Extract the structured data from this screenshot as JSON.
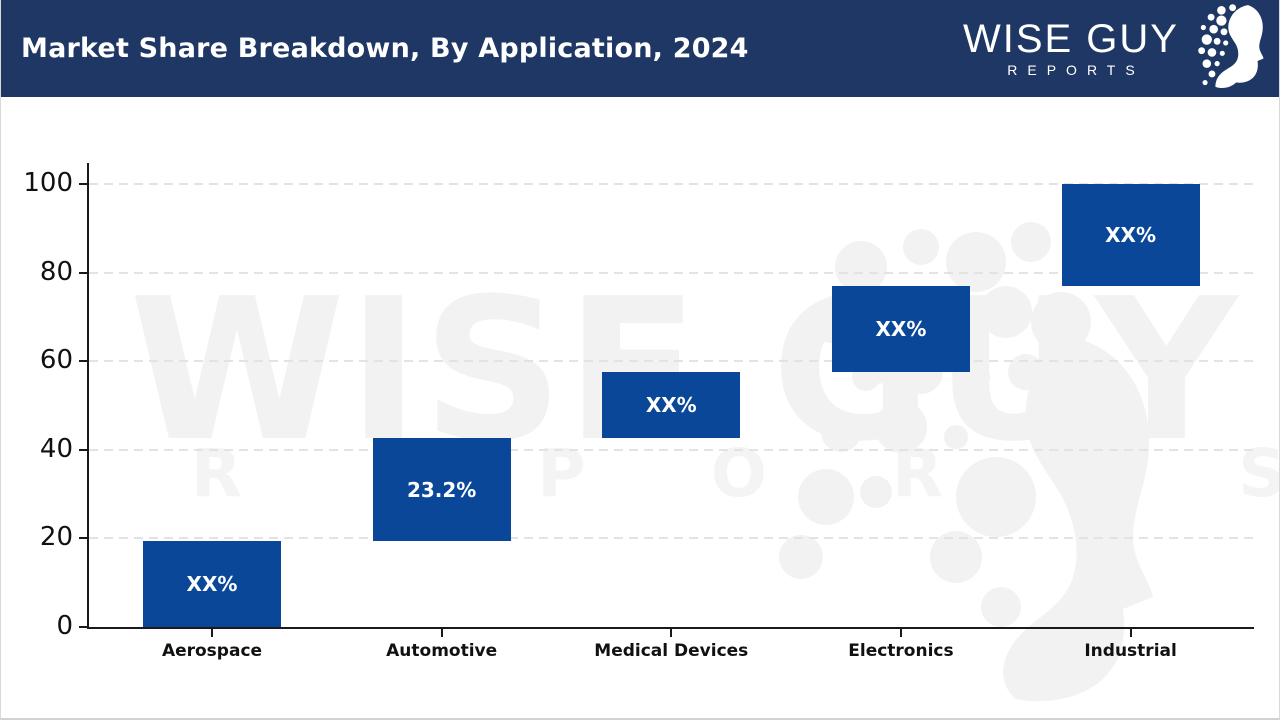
{
  "header": {
    "title": "Market Share Breakdown, By Application, 2024",
    "logo": {
      "line1": "WISE GUY",
      "line2": "REPORTS"
    }
  },
  "watermark": {
    "line1": "WISE GUY",
    "line2": "REPORTS"
  },
  "chart_data": {
    "type": "bar",
    "subtype": "waterfall",
    "title": "Market Share Breakdown, By Application, 2024",
    "categories": [
      "Aerospace",
      "Automotive",
      "Medical Devices",
      "Electronics",
      "Industrial"
    ],
    "segments": [
      {
        "category": "Aerospace",
        "start": 0,
        "end": 19.4,
        "value_label": "XX%"
      },
      {
        "category": "Automotive",
        "start": 19.4,
        "end": 42.6,
        "value_label": "23.2%"
      },
      {
        "category": "Medical Devices",
        "start": 42.6,
        "end": 57.6,
        "value_label": "XX%"
      },
      {
        "category": "Electronics",
        "start": 57.6,
        "end": 77.0,
        "value_label": "XX%"
      },
      {
        "category": "Industrial",
        "start": 77.0,
        "end": 100.0,
        "value_label": "XX%"
      }
    ],
    "yticks": [
      0,
      20,
      40,
      60,
      80,
      100
    ],
    "ylim": [
      0,
      103
    ],
    "xlabel": "",
    "ylabel": "",
    "grid": "horizontal-dashed",
    "legend": "none",
    "bar_color": "#0b4798",
    "bar_label_color": "#ffffff"
  },
  "colors": {
    "header_bg": "#1f3764",
    "bar_blue": "#0b4798",
    "axis": "#1a1a1a",
    "gridline": "#e3e3e3",
    "watermark": "#f2f2f2"
  }
}
